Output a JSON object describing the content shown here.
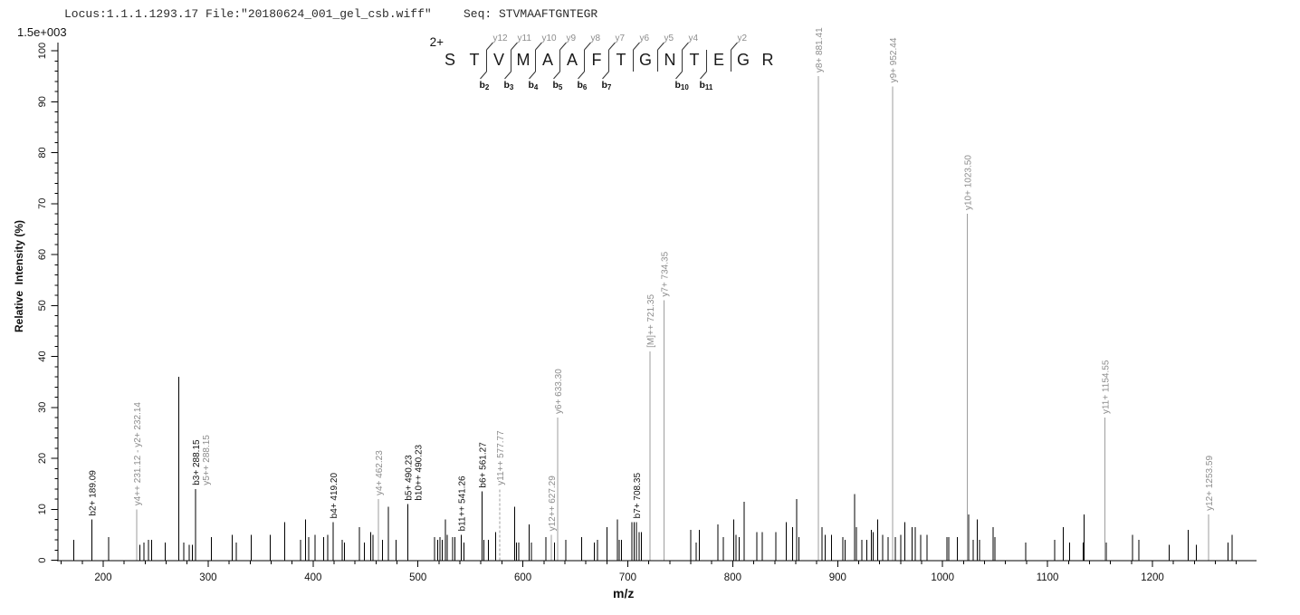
{
  "header": {
    "locus_file": "Locus:1.1.1.1293.17 File:\"20180624_001_gel_csb.wiff\"",
    "sequence_label": "Seq: STVMAAFTGNTEGR",
    "intensity_scale": "1.5e+003"
  },
  "chart_data": {
    "type": "bar",
    "subtype": "ms2-peptide-fragmentation-spectrum",
    "title": "",
    "xlabel": "m/z",
    "ylabel": "Relative  Intensity (%)",
    "xlim": [
      156,
      1298
    ],
    "ylim": [
      0,
      100
    ],
    "x_ticks": [
      200,
      300,
      400,
      500,
      600,
      700,
      800,
      900,
      1000,
      1100,
      1200
    ],
    "x_minor_tick_step": 20,
    "y_ticks": [
      0,
      10,
      20,
      30,
      40,
      50,
      60,
      70,
      80,
      90,
      100
    ],
    "y_minor_tick_step": 2,
    "grid": false,
    "precursor_charge": "2+",
    "peptide": {
      "residues": [
        "S",
        "T",
        "V",
        "M",
        "A",
        "A",
        "F",
        "T",
        "G",
        "N",
        "T",
        "E",
        "G",
        "R"
      ],
      "fragment_cuts": [
        {
          "after": 2,
          "y": "y12",
          "b": "b2"
        },
        {
          "after": 3,
          "y": "y11",
          "b": "b3"
        },
        {
          "after": 4,
          "y": "y10",
          "b": "b4"
        },
        {
          "after": 5,
          "y": "y9",
          "b": "b5"
        },
        {
          "after": 6,
          "y": "y8",
          "b": "b6"
        },
        {
          "after": 7,
          "y": "y7",
          "b": "b7"
        },
        {
          "after": 8,
          "y": "y6",
          "b": null
        },
        {
          "after": 9,
          "y": "y5",
          "b": null
        },
        {
          "after": 10,
          "y": "y4",
          "b": "b10"
        },
        {
          "after": 11,
          "y": null,
          "b": "b11"
        },
        {
          "after": 12,
          "y": "y2",
          "b": null
        }
      ]
    },
    "labeled_peaks": [
      {
        "mz": 189.09,
        "intensity": 8,
        "label": "b2+ 189.09",
        "series": "b"
      },
      {
        "mz": 232.14,
        "intensity": 10,
        "label": "y4++ 231.12 - y2+ 232.14",
        "series": "y"
      },
      {
        "mz": 288.15,
        "intensity": 14,
        "label": "b3+ 288.15",
        "label2": "y5++ 288.15",
        "label2_series": "y",
        "series": "b"
      },
      {
        "mz": 419.2,
        "intensity": 7.5,
        "label": "b4+ 419.20",
        "series": "b"
      },
      {
        "mz": 462.23,
        "intensity": 12,
        "label": "y4+ 462.23",
        "series": "y"
      },
      {
        "mz": 490.23,
        "intensity": 11,
        "label": "b5+ 490.23",
        "label2": "b10++ 490.23",
        "label2_series": "b",
        "series": "b"
      },
      {
        "mz": 541.26,
        "intensity": 5,
        "label": "b11++ 541.26",
        "series": "b"
      },
      {
        "mz": 561.27,
        "intensity": 13.5,
        "label": "b6+ 561.27",
        "series": "b"
      },
      {
        "mz": 577.77,
        "intensity": 14,
        "label": "y11++ 577.77",
        "series": "y",
        "dashed": true
      },
      {
        "mz": 627.29,
        "intensity": 5,
        "label": "y12++ 627.29",
        "series": "y"
      },
      {
        "mz": 633.3,
        "intensity": 28,
        "label": "y6+ 633.30",
        "series": "y"
      },
      {
        "mz": 708.35,
        "intensity": 7.5,
        "label": "b7+ 708.35",
        "series": "b"
      },
      {
        "mz": 721.35,
        "intensity": 41,
        "label": "[M]++ 721.35",
        "series": "y"
      },
      {
        "mz": 734.35,
        "intensity": 51,
        "label": "y7+ 734.35",
        "series": "y"
      },
      {
        "mz": 881.41,
        "intensity": 95,
        "label": "y8+ 881.41",
        "series": "y"
      },
      {
        "mz": 952.44,
        "intensity": 93,
        "label": "y9+ 952.44",
        "series": "y"
      },
      {
        "mz": 1023.5,
        "intensity": 68,
        "label": "y10+ 1023.50",
        "series": "y"
      },
      {
        "mz": 1154.55,
        "intensity": 28,
        "label": "y11+ 1154.55",
        "series": "y"
      },
      {
        "mz": 1253.59,
        "intensity": 9,
        "label": "y12+ 1253.59",
        "series": "y"
      }
    ],
    "unlabeled_peaks": [
      [
        172,
        4
      ],
      [
        205,
        4.5
      ],
      [
        235,
        3
      ],
      [
        239,
        3.5
      ],
      [
        243,
        4
      ],
      [
        246,
        4
      ],
      [
        259,
        3.5
      ],
      [
        272,
        36
      ],
      [
        277,
        3.5
      ],
      [
        282,
        3
      ],
      [
        285,
        3
      ],
      [
        303,
        4.5
      ],
      [
        323,
        5
      ],
      [
        327,
        3.5
      ],
      [
        341,
        5
      ],
      [
        359,
        5
      ],
      [
        373,
        7.5
      ],
      [
        388,
        4
      ],
      [
        393,
        8
      ],
      [
        396,
        4.5
      ],
      [
        402,
        5
      ],
      [
        410,
        4.5
      ],
      [
        414,
        5
      ],
      [
        428,
        4
      ],
      [
        430,
        3.5
      ],
      [
        444,
        6.5
      ],
      [
        449,
        3.5
      ],
      [
        455,
        5.5
      ],
      [
        457,
        5
      ],
      [
        466,
        4
      ],
      [
        472,
        10.5
      ],
      [
        479,
        4
      ],
      [
        516,
        4.5
      ],
      [
        519,
        4
      ],
      [
        521,
        4.5
      ],
      [
        523,
        4
      ],
      [
        526,
        8
      ],
      [
        528,
        5
      ],
      [
        533,
        4.5
      ],
      [
        535,
        4.5
      ],
      [
        544,
        3.5
      ],
      [
        563,
        4
      ],
      [
        567,
        4
      ],
      [
        574,
        5.5
      ],
      [
        592,
        10.5
      ],
      [
        594,
        3.5
      ],
      [
        596,
        3.5
      ],
      [
        606,
        7
      ],
      [
        608,
        3.5
      ],
      [
        622,
        4.5
      ],
      [
        630,
        3.5
      ],
      [
        641,
        4
      ],
      [
        656,
        4.5
      ],
      [
        668,
        3.5
      ],
      [
        671,
        4
      ],
      [
        680,
        6.5
      ],
      [
        690,
        8
      ],
      [
        692,
        4
      ],
      [
        694,
        4
      ],
      [
        704,
        7.5
      ],
      [
        706,
        7.5
      ],
      [
        711,
        5.5
      ],
      [
        713,
        5.5
      ],
      [
        760,
        6
      ],
      [
        765,
        3.5
      ],
      [
        768,
        6
      ],
      [
        786,
        7
      ],
      [
        791,
        4.5
      ],
      [
        801,
        8
      ],
      [
        803,
        5
      ],
      [
        806,
        4.5
      ],
      [
        811,
        11.5
      ],
      [
        823,
        5.5
      ],
      [
        828,
        5.5
      ],
      [
        841,
        5.5
      ],
      [
        851,
        7.5
      ],
      [
        857,
        6.5
      ],
      [
        861,
        12
      ],
      [
        863,
        4.5
      ],
      [
        885,
        6.5
      ],
      [
        888,
        5
      ],
      [
        894,
        5
      ],
      [
        905,
        4.5
      ],
      [
        907,
        4
      ],
      [
        916,
        13
      ],
      [
        918,
        6.5
      ],
      [
        923,
        4
      ],
      [
        928,
        4
      ],
      [
        932,
        6
      ],
      [
        934,
        5.5
      ],
      [
        938,
        8
      ],
      [
        943,
        5
      ],
      [
        948,
        4.5
      ],
      [
        955,
        4.5
      ],
      [
        960,
        5
      ],
      [
        964,
        7.5
      ],
      [
        971,
        6.5
      ],
      [
        974,
        6.5
      ],
      [
        979,
        5
      ],
      [
        985,
        5
      ],
      [
        1004,
        4.5
      ],
      [
        1006,
        4.5
      ],
      [
        1014,
        4.5
      ],
      [
        1025,
        9
      ],
      [
        1029,
        4
      ],
      [
        1033,
        8
      ],
      [
        1035,
        4
      ],
      [
        1048,
        6.5
      ],
      [
        1050,
        4.5
      ],
      [
        1079,
        3.5
      ],
      [
        1107,
        4
      ],
      [
        1115,
        6.5
      ],
      [
        1121,
        3.5
      ],
      [
        1134,
        3.5
      ],
      [
        1135,
        9
      ],
      [
        1156,
        3.5
      ],
      [
        1181,
        5
      ],
      [
        1187,
        4
      ],
      [
        1216,
        3
      ],
      [
        1234,
        6
      ],
      [
        1242,
        3
      ],
      [
        1272,
        3.5
      ],
      [
        1276,
        5
      ]
    ],
    "legend": null
  },
  "colors": {
    "black_ion": "#000000",
    "gray_ion_line": "#9e9e9e",
    "gray_ion_text": "#8c8c8c",
    "axis": "#000000",
    "background": "#ffffff"
  }
}
